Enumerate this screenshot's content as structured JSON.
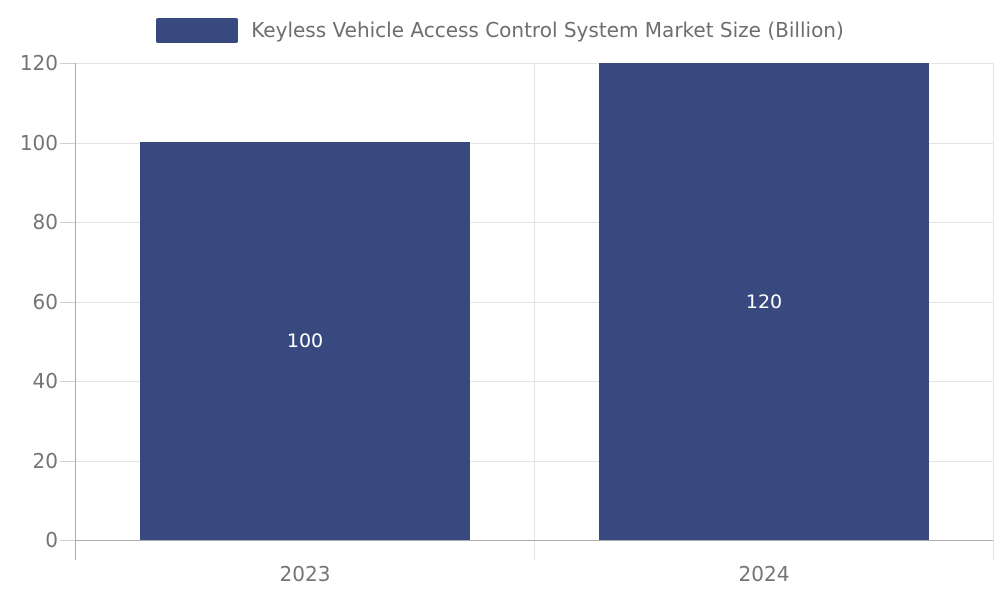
{
  "chart_data": {
    "type": "bar",
    "title": "Keyless Vehicle Access Control System Market Size (Billion)",
    "legend": [
      "Keyless Vehicle Access Control System Market Size (Billion)"
    ],
    "legend_position": "top-center",
    "categories": [
      "2023",
      "2024"
    ],
    "series": [
      {
        "name": "Keyless Vehicle Access Control System Market Size (Billion)",
        "values": [
          100,
          120
        ]
      }
    ],
    "value_labels": [
      "100",
      "120"
    ],
    "xlabel": "",
    "ylabel": "",
    "ylim": [
      0,
      120
    ],
    "yticks": [
      0,
      20,
      40,
      60,
      80,
      100,
      120
    ],
    "grid": true
  },
  "style": {
    "bar_color": "#38497F",
    "value_label_color": "#FFFFFF",
    "axis_color": "#AAAAAA",
    "grid_color": "#E4E4E4",
    "tick_color": "#CFCFCF",
    "tick_label_color": "#757575",
    "legend_text_color": "#6E6E6E",
    "background": "#FFFFFF"
  }
}
